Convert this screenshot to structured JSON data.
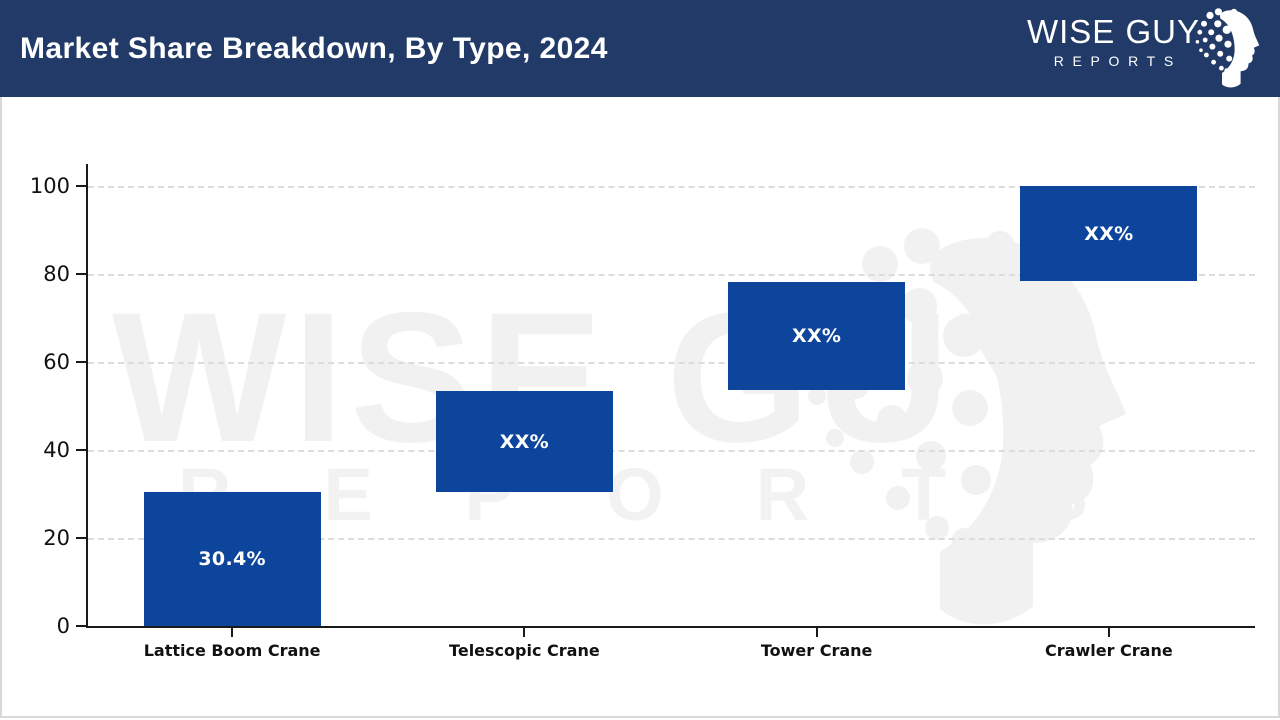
{
  "header": {
    "title": "Market Share Breakdown, By Type, 2024",
    "logo_line1": "WISE GUY",
    "logo_line2": "REPORTS",
    "bg_color": "#223a67"
  },
  "watermark": {
    "line1": "WISE GUY",
    "line2": "REPORTS"
  },
  "chart_data": {
    "type": "bar",
    "subtype": "floating-waterfall",
    "title": "Market Share Breakdown, By Type, 2024",
    "categories": [
      "Lattice Boom Crane",
      "Telescopic Crane",
      "Tower Crane",
      "Crawler Crane"
    ],
    "segments": [
      {
        "category": "Lattice Boom Crane",
        "start": 0,
        "end": 30.4,
        "label": "30.4%"
      },
      {
        "category": "Telescopic Crane",
        "start": 30.4,
        "end": 53.4,
        "label": "XX%"
      },
      {
        "category": "Tower Crane",
        "start": 53.6,
        "end": 78.2,
        "label": "XX%"
      },
      {
        "category": "Crawler Crane",
        "start": 78.4,
        "end": 100,
        "label": "XX%"
      }
    ],
    "xlabel": "",
    "ylabel": "",
    "ylim": [
      0,
      100
    ],
    "yticks": [
      0,
      20,
      40,
      60,
      80,
      100
    ],
    "grid": "horizontal-dashed",
    "legend": "none",
    "bar_color": "#0d459c",
    "bar_label_color": "#ffffff",
    "axis_color": "#1a1a1a",
    "grid_color": "#dcdcdc"
  }
}
